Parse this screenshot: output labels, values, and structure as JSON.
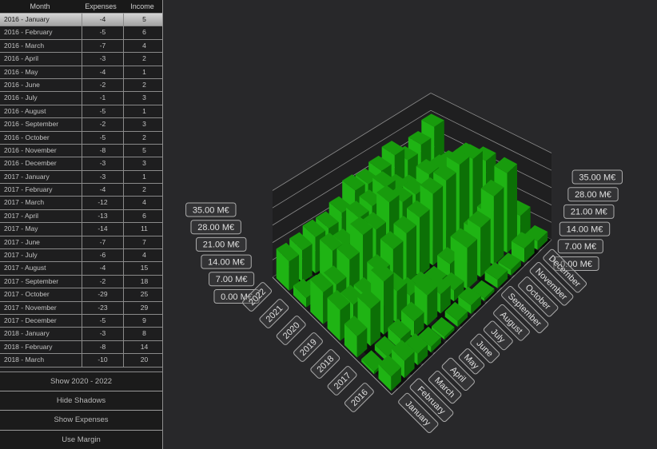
{
  "panel": {
    "columns": [
      "Month",
      "Expenses",
      "Income"
    ],
    "rows": [
      {
        "month": "2016 - January",
        "expenses": "-4",
        "income": "5",
        "selected": true
      },
      {
        "month": "2016 - February",
        "expenses": "-5",
        "income": "6",
        "selected": false
      },
      {
        "month": "2016 - March",
        "expenses": "-7",
        "income": "4",
        "selected": false
      },
      {
        "month": "2016 - April",
        "expenses": "-3",
        "income": "2",
        "selected": false
      },
      {
        "month": "2016 - May",
        "expenses": "-4",
        "income": "1",
        "selected": false
      },
      {
        "month": "2016 - June",
        "expenses": "-2",
        "income": "2",
        "selected": false
      },
      {
        "month": "2016 - July",
        "expenses": "-1",
        "income": "3",
        "selected": false
      },
      {
        "month": "2016 - August",
        "expenses": "-5",
        "income": "1",
        "selected": false
      },
      {
        "month": "2016 - September",
        "expenses": "-2",
        "income": "3",
        "selected": false
      },
      {
        "month": "2016 - October",
        "expenses": "-5",
        "income": "2",
        "selected": false
      },
      {
        "month": "2016 - November",
        "expenses": "-8",
        "income": "5",
        "selected": false
      },
      {
        "month": "2016 - December",
        "expenses": "-3",
        "income": "3",
        "selected": false
      },
      {
        "month": "2017 - January",
        "expenses": "-3",
        "income": "1",
        "selected": false
      },
      {
        "month": "2017 - February",
        "expenses": "-4",
        "income": "2",
        "selected": false
      },
      {
        "month": "2017 - March",
        "expenses": "-12",
        "income": "4",
        "selected": false
      },
      {
        "month": "2017 - April",
        "expenses": "-13",
        "income": "6",
        "selected": false
      },
      {
        "month": "2017 - May",
        "expenses": "-14",
        "income": "11",
        "selected": false
      },
      {
        "month": "2017 - June",
        "expenses": "-7",
        "income": "7",
        "selected": false
      },
      {
        "month": "2017 - July",
        "expenses": "-6",
        "income": "4",
        "selected": false
      },
      {
        "month": "2017 - August",
        "expenses": "-4",
        "income": "15",
        "selected": false
      },
      {
        "month": "2017 - September",
        "expenses": "-2",
        "income": "18",
        "selected": false
      },
      {
        "month": "2017 - October",
        "expenses": "-29",
        "income": "25",
        "selected": false
      },
      {
        "month": "2017 - November",
        "expenses": "-23",
        "income": "29",
        "selected": false
      },
      {
        "month": "2017 - December",
        "expenses": "-5",
        "income": "9",
        "selected": false
      },
      {
        "month": "2018 - January",
        "expenses": "-3",
        "income": "8",
        "selected": false
      },
      {
        "month": "2018 - February",
        "expenses": "-8",
        "income": "14",
        "selected": false
      },
      {
        "month": "2018 - March",
        "expenses": "-10",
        "income": "20",
        "selected": false
      }
    ],
    "buttons": [
      "Show 2020 - 2022",
      "Hide Shadows",
      "Show Expenses",
      "Use Margin"
    ]
  },
  "chart_data": {
    "type": "bar",
    "subtype": "3d-bars-perspective",
    "title": "",
    "categories_months": [
      "January",
      "February",
      "March",
      "April",
      "May",
      "June",
      "July",
      "August",
      "September",
      "October",
      "November",
      "December"
    ],
    "categories_years": [
      "2016",
      "2017",
      "2018",
      "2019",
      "2020",
      "2021",
      "2022"
    ],
    "value_axis": {
      "min": 0,
      "max": 35,
      "step": 7,
      "tick_labels": [
        "0.00 M€",
        "7.00 M€",
        "14.00 M€",
        "21.00 M€",
        "28.00 M€",
        "35.00 M€"
      ]
    },
    "legend_position": "none",
    "series": [
      {
        "name": "Income",
        "unit": "M€",
        "rows": [
          {
            "year": "2016",
            "values": [
              5,
              6,
              4,
              2,
              1,
              2,
              3,
              1,
              3,
              2,
              5,
              3
            ]
          },
          {
            "year": "2017",
            "values": [
              1,
              2,
              4,
              6,
              11,
              7,
              4,
              15,
              18,
              25,
              29,
              9
            ]
          },
          {
            "year": "2018",
            "values": [
              8,
              14,
              20,
              12,
              6,
              4,
              2,
              5,
              8,
              9,
              11,
              8
            ]
          },
          {
            "year": "2019",
            "values": [
              12,
              10,
              9,
              14,
              19,
              21,
              23,
              28,
              29,
              31,
              29,
              24
            ]
          },
          {
            "year": "2020",
            "values": [
              13,
              12,
              18,
              24,
              22,
              29,
              25,
              24,
              28,
              26,
              22,
              23
            ]
          },
          {
            "year": "2021",
            "values": [
              4,
              2,
              16,
              14,
              22,
              23,
              27,
              22,
              18,
              13,
              16,
              17
            ]
          },
          {
            "year": "2022",
            "values": [
              13,
              14,
              16,
              16,
              19,
              25,
              24,
              26,
              29,
              23,
              26,
              30
            ]
          }
        ]
      }
    ],
    "colors": {
      "bar_front": "#1fb414",
      "bar_side": "#0c7006",
      "bar_top": "#189b0d",
      "background": "#28282a",
      "wall": "#1f1f20",
      "floor": "#1a1a1b",
      "grid_line": "#8b8b8b",
      "axis_edge": "#9a9a9a",
      "label_text": "#e0e0e0",
      "label_border": "#ababab",
      "shadow": "rgba(0,0,0,0.45)"
    }
  }
}
